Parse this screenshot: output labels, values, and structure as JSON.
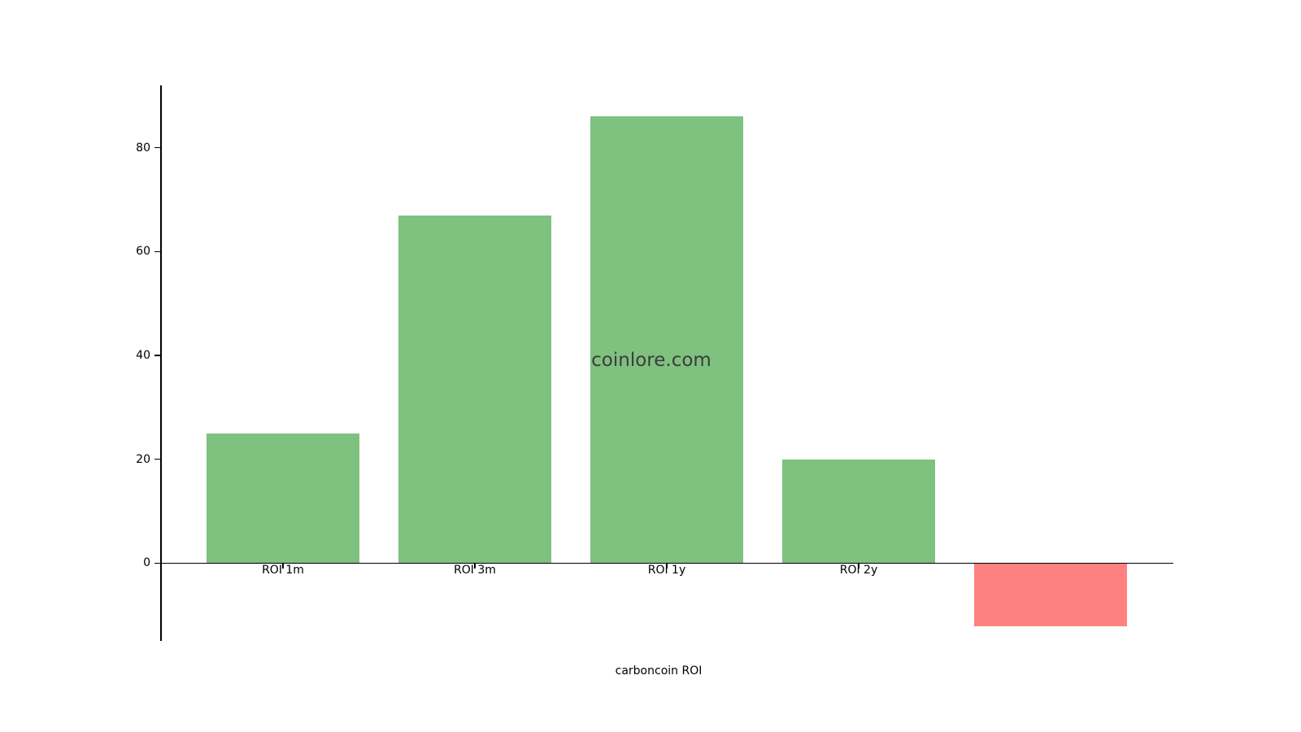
{
  "watermark": "coinlore.com",
  "chart_data": {
    "type": "bar",
    "title": "",
    "xlabel": "carboncoin ROI",
    "ylabel": "",
    "categories": [
      "ROI 1m",
      "ROI 3m",
      "ROI 1y",
      "ROI 2y",
      ""
    ],
    "values": [
      25,
      67,
      86,
      20,
      -12
    ],
    "yticks": [
      0,
      20,
      40,
      60,
      80
    ],
    "ylim": [
      -15,
      92
    ],
    "grid": false,
    "legend": "none",
    "colors": {
      "positive_bar": "#7fc17f",
      "negative_bar": "#fd8181",
      "axis": "#000000",
      "text": "#000000",
      "watermark_text": "#3c3c3c"
    }
  }
}
